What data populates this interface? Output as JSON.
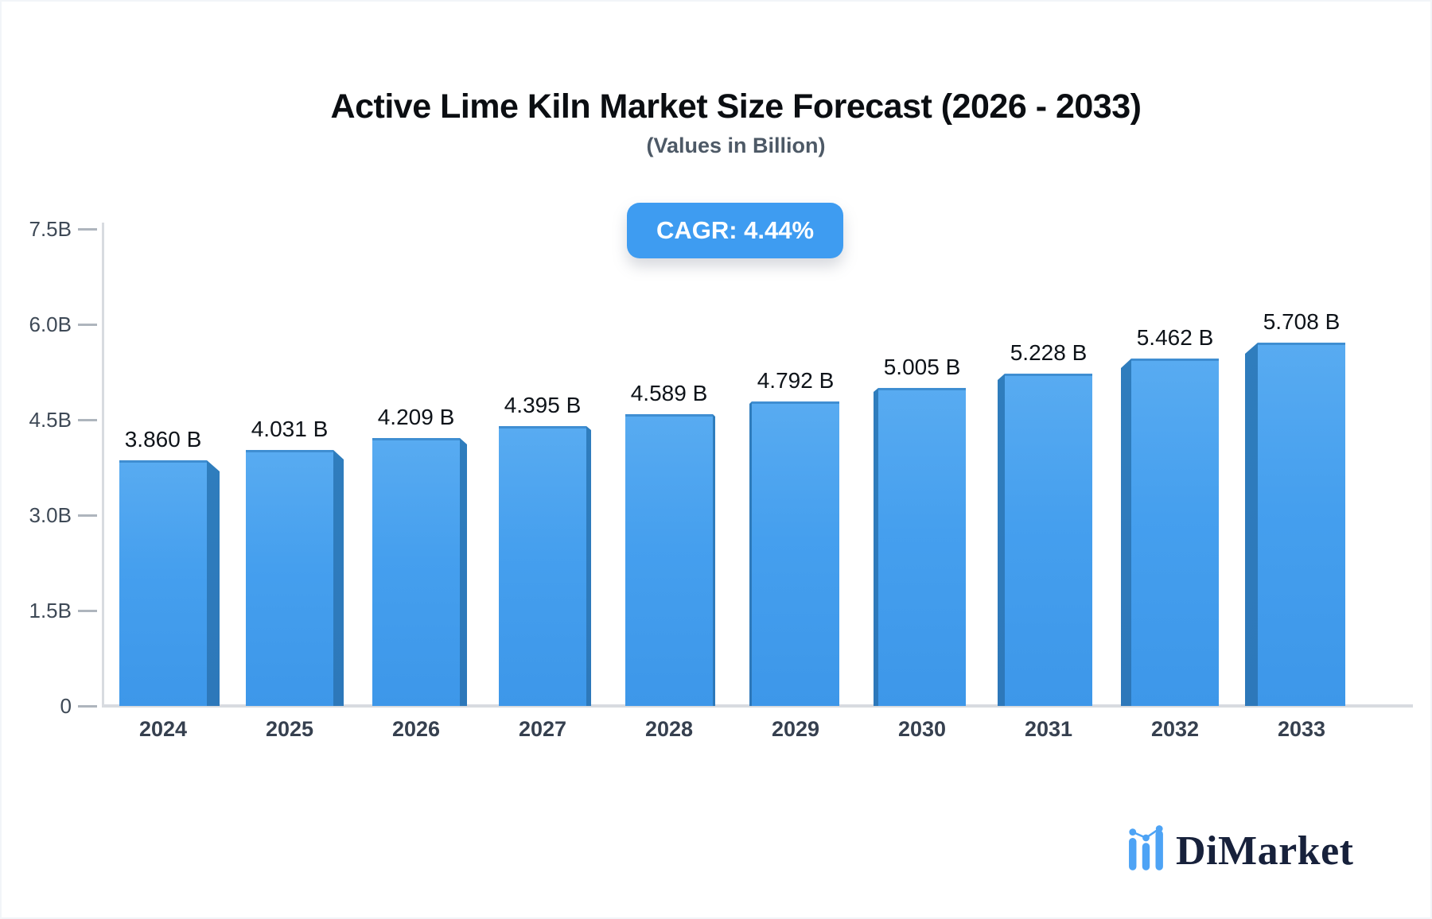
{
  "header": {
    "title": "Active Lime Kiln Market Size Forecast (2026 - 2033)",
    "subtitle": "(Values in Billion)",
    "cagr_label": "CAGR: 4.44%"
  },
  "brand": {
    "name": "DiMarket",
    "icon": "dimarket-bar-chart-logo-icon"
  },
  "colors": {
    "bar_face_top": "#58abf1",
    "bar_face_bottom": "#3d97e9",
    "bar_side": "#2d78ba",
    "badge_bg": "#3e9cf1",
    "badge_text": "#ffffff",
    "axis_line": "#d8dbe0",
    "tick_text": "#3e4956",
    "value_text": "#0e1319",
    "year_text": "#36404f",
    "logo_text": "#17213b",
    "logo_icon": "#4da3f5"
  },
  "chart_data": {
    "type": "bar",
    "title": "Active Lime Kiln Market Size Forecast (2026 - 2033)",
    "subtitle": "(Values in Billion)",
    "cagr_percent": 4.44,
    "categories": [
      "2024",
      "2025",
      "2026",
      "2027",
      "2028",
      "2029",
      "2030",
      "2031",
      "2032",
      "2033"
    ],
    "values": [
      3.86,
      4.031,
      4.209,
      4.395,
      4.589,
      4.792,
      5.005,
      5.228,
      5.462,
      5.708
    ],
    "value_labels": [
      "3.860 B",
      "4.031 B",
      "4.209 B",
      "4.395 B",
      "4.589 B",
      "4.792 B",
      "5.005 B",
      "5.228 B",
      "5.462 B",
      "5.708 B"
    ],
    "xlabel": "",
    "ylabel": "",
    "ylim": [
      0,
      7.5
    ],
    "yticks": [
      {
        "label": "0",
        "value": 0
      },
      {
        "label": "1.5B",
        "value": 1.5
      },
      {
        "label": "3.0B",
        "value": 3.0
      },
      {
        "label": "4.5B",
        "value": 4.5
      },
      {
        "label": "6.0B",
        "value": 6.0
      },
      {
        "label": "7.5B",
        "value": 7.5
      }
    ],
    "grid": false,
    "legend_position": "none",
    "style": "3d-perspective-columns"
  }
}
